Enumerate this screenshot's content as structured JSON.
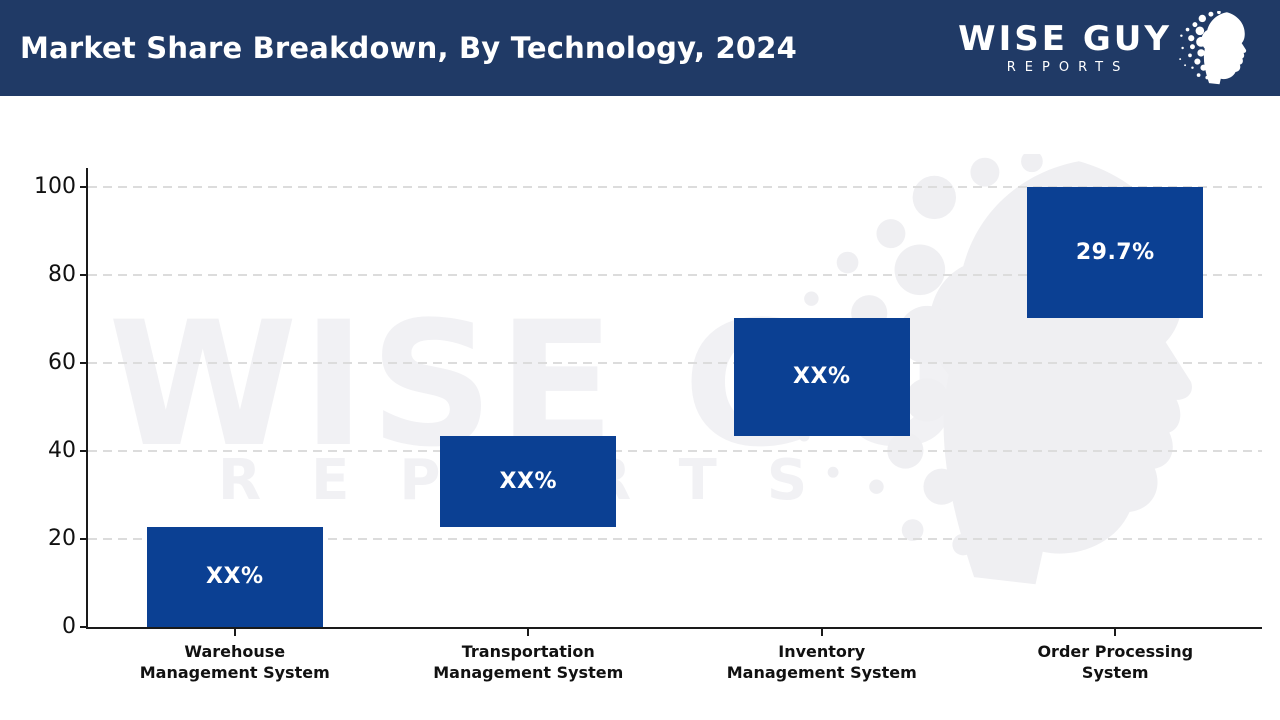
{
  "header": {
    "title": "Market Share Breakdown, By Technology, 2024",
    "logo": {
      "line1": "WISE GUY",
      "line2": "REPORTS"
    }
  },
  "watermark": {
    "line1": "WISE GUY",
    "line2": "REPORTS"
  },
  "colors": {
    "header_bg": "#203a66",
    "bar": "#0b4093",
    "watermark": "#f1f1f4",
    "grid": "#dcdcdc",
    "axis": "#1a1a1a"
  },
  "chart_data": {
    "type": "bar",
    "subtype": "waterfall",
    "title": "Market Share Breakdown, By Technology, 2024",
    "xlabel": "",
    "ylabel": "",
    "ylim": [
      0,
      105
    ],
    "yticks": [
      0,
      20,
      40,
      60,
      80,
      100
    ],
    "grid": "dashed-horizontal",
    "legend": "none",
    "bar_color": "#0b4093",
    "categories": [
      "Warehouse Management System",
      "Transportation Management System",
      "Inventory Management System",
      "Order Processing System"
    ],
    "categories_lines": [
      [
        "Warehouse",
        "Management System"
      ],
      [
        "Transportation",
        "Management System"
      ],
      [
        "Inventory",
        "Management System"
      ],
      [
        "Order Processing",
        "System"
      ]
    ],
    "segments": [
      {
        "category": "Warehouse Management System",
        "start": 0,
        "end": 22.8,
        "size": 22.8,
        "label": "XX%"
      },
      {
        "category": "Transportation Management System",
        "start": 22.8,
        "end": 43.5,
        "size": 20.7,
        "label": "XX%"
      },
      {
        "category": "Inventory Management System",
        "start": 43.5,
        "end": 70.3,
        "size": 26.8,
        "label": "XX%"
      },
      {
        "category": "Order Processing System",
        "start": 70.3,
        "end": 100,
        "size": 29.7,
        "label": "29.7%"
      }
    ]
  }
}
